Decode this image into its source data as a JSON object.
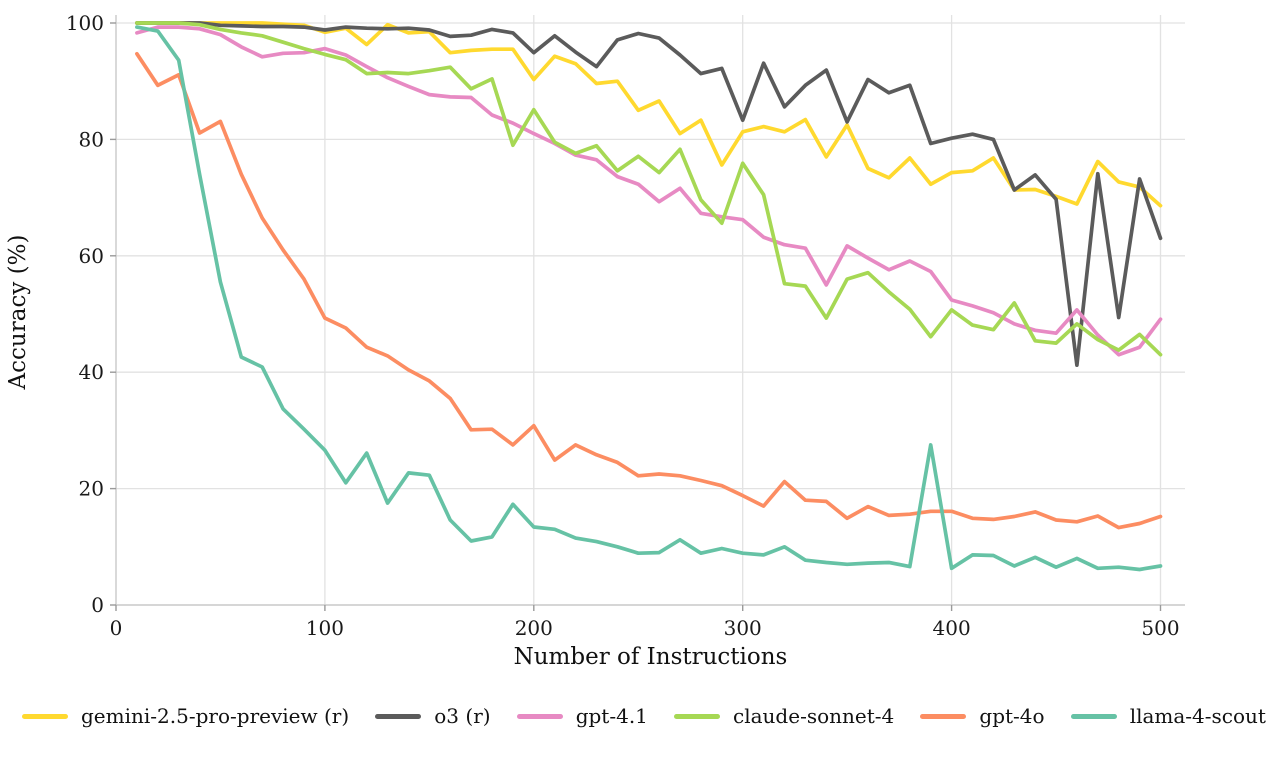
{
  "chart_data": {
    "type": "line",
    "title": "",
    "xlabel": "Number of Instructions",
    "ylabel": "Accuracy (%)",
    "xlim": [
      0,
      500
    ],
    "ylim": [
      0,
      100
    ],
    "xticks": [
      0,
      100,
      200,
      300,
      400,
      500
    ],
    "yticks": [
      0,
      20,
      40,
      60,
      80,
      100
    ],
    "grid": true,
    "legend_position": "bottom",
    "x": [
      10,
      20,
      30,
      40,
      50,
      60,
      70,
      80,
      90,
      100,
      110,
      120,
      130,
      140,
      150,
      160,
      170,
      180,
      190,
      200,
      210,
      220,
      230,
      240,
      250,
      260,
      270,
      280,
      290,
      300,
      310,
      320,
      330,
      340,
      350,
      360,
      370,
      380,
      390,
      400,
      410,
      420,
      430,
      440,
      450,
      460,
      470,
      480,
      490,
      500
    ],
    "series": [
      {
        "name": "gemini-2.5-pro-preview (r)",
        "color": "#FFD92F",
        "values": [
          100,
          100,
          100,
          100,
          100,
          100,
          100,
          99.8,
          99.6,
          98.4,
          99.1,
          96.3,
          99.7,
          98.3,
          98.5,
          94.9,
          95.3,
          95.5,
          95.5,
          90.3,
          94.3,
          93,
          89.6,
          90,
          85,
          86.6,
          81,
          83.3,
          75.6,
          81.3,
          82.2,
          81.3,
          83.4,
          77,
          82.5,
          75,
          73.4,
          76.8,
          72.3,
          74.3,
          74.6,
          76.8,
          71.3,
          71.4,
          70.2,
          68.9,
          76.2,
          72.7,
          71.8,
          68.6
        ]
      },
      {
        "name": "o3 (r)",
        "color": "#5B5B5B",
        "values": [
          100,
          100,
          100,
          100,
          99.6,
          99.5,
          99.4,
          99.4,
          99.3,
          98.8,
          99.3,
          99.1,
          99,
          99.1,
          98.8,
          97.7,
          97.9,
          98.9,
          98.3,
          94.9,
          97.8,
          95,
          92.5,
          97.1,
          98.2,
          97.4,
          94.5,
          91.3,
          92.2,
          83.3,
          93.1,
          85.6,
          89.3,
          91.9,
          83,
          90.3,
          88,
          89.3,
          79.3,
          80.2,
          80.9,
          80,
          71.3,
          73.9,
          69.7,
          41.2,
          74.1,
          49.4,
          73.2,
          63
        ]
      },
      {
        "name": "gpt-4.1",
        "color": "#E78AC3",
        "values": [
          98.3,
          99.3,
          99.3,
          99,
          98,
          95.9,
          94.2,
          94.8,
          94.9,
          95.6,
          94.5,
          92.5,
          90.6,
          89.1,
          87.7,
          87.3,
          87.2,
          84.2,
          82.8,
          81,
          79.3,
          77.3,
          76.5,
          73.6,
          72.3,
          69.3,
          71.6,
          67.3,
          66.7,
          66.2,
          63.2,
          61.9,
          61.3,
          55,
          61.7,
          59.6,
          57.6,
          59.1,
          57.3,
          52.4,
          51.4,
          50.2,
          48.3,
          47.2,
          46.7,
          50.7,
          46.4,
          43,
          44.3,
          49.1
        ]
      },
      {
        "name": "claude-sonnet-4",
        "color": "#A6D854",
        "values": [
          100,
          100,
          100,
          99.7,
          98.9,
          98.3,
          97.8,
          96.7,
          95.6,
          94.6,
          93.7,
          91.3,
          91.5,
          91.3,
          91.8,
          92.4,
          88.7,
          90.4,
          79,
          85.1,
          79.5,
          77.6,
          78.9,
          74.6,
          77.1,
          74.3,
          78.3,
          69.6,
          65.6,
          75.9,
          70.5,
          55.2,
          54.8,
          49.3,
          56,
          57.1,
          53.8,
          50.8,
          46.1,
          50.7,
          48.1,
          47.3,
          51.9,
          45.4,
          45,
          48.3,
          45.6,
          43.8,
          46.5,
          43
        ]
      },
      {
        "name": "gpt-4o",
        "color": "#FC8D62",
        "values": [
          94.7,
          89.3,
          91.1,
          81.1,
          83.1,
          74,
          66.5,
          61,
          56,
          49.3,
          47.6,
          44.3,
          42.8,
          40.4,
          38.5,
          35.5,
          30.1,
          30.2,
          27.5,
          30.8,
          24.9,
          27.5,
          25.8,
          24.5,
          22.2,
          22.5,
          22.2,
          21.4,
          20.5,
          18.8,
          17,
          21.2,
          18,
          17.8,
          14.9,
          16.9,
          15.4,
          15.6,
          16.1,
          16.1,
          14.9,
          14.7,
          15.2,
          16,
          14.6,
          14.3,
          15.3,
          13.3,
          14,
          15.2
        ]
      },
      {
        "name": "llama-4-scout",
        "color": "#66C2A5",
        "values": [
          99.3,
          98.6,
          93.6,
          74,
          55.5,
          42.6,
          40.9,
          33.7,
          30.2,
          26.6,
          21,
          26.1,
          17.5,
          22.7,
          22.3,
          14.6,
          11,
          11.7,
          17.3,
          13.4,
          13,
          11.5,
          10.9,
          10,
          8.9,
          9,
          11.2,
          8.9,
          9.7,
          8.9,
          8.6,
          10,
          7.7,
          7.3,
          7,
          7.2,
          7.3,
          6.6,
          27.5,
          6.3,
          8.6,
          8.5,
          6.7,
          8.2,
          6.5,
          8,
          6.3,
          6.5,
          6.1,
          6.7
        ]
      }
    ],
    "style": {
      "grid_color": "#E2E2E2",
      "axis_color": "#C9C9C9",
      "tick_color": "#9A9A9A",
      "text_color": "#1a1a1a",
      "line_width": 3.7
    }
  }
}
